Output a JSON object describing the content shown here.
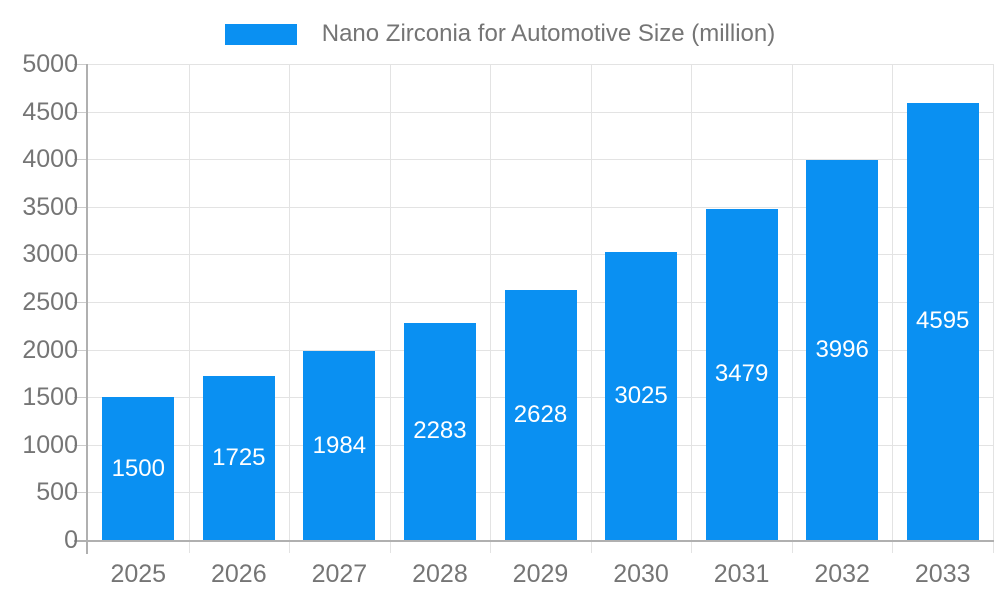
{
  "legend": {
    "label": "Nano Zirconia for Automotive Size (million)"
  },
  "chart_data": {
    "type": "bar",
    "title": "Nano Zirconia for Automotive Size (million)",
    "series_name": "Nano Zirconia for Automotive Size (million)",
    "categories": [
      "2025",
      "2026",
      "2027",
      "2028",
      "2029",
      "2030",
      "2031",
      "2032",
      "2033"
    ],
    "values": [
      1500,
      1725,
      1984,
      2283,
      2628,
      3025,
      3479,
      3996,
      4595
    ],
    "xlabel": "",
    "ylabel": "",
    "ylim": [
      0,
      5000
    ],
    "ytick_step": 500,
    "yticks": [
      0,
      500,
      1000,
      1500,
      2000,
      2500,
      3000,
      3500,
      4000,
      4500,
      5000
    ],
    "grid": true,
    "legend_position": "top",
    "bar_labels_inside": true,
    "colors": {
      "bar": "#0a90f2",
      "bar_label": "#ffffff",
      "axis_text": "#757575",
      "grid_line": "#e3e3e3",
      "axis_line": "#b0b0b0",
      "tick_line": "#cccccc"
    }
  }
}
